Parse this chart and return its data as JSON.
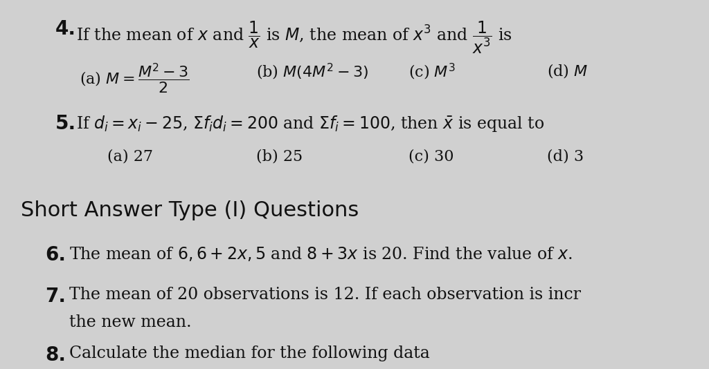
{
  "bg_color": "#d0d0d0",
  "text_color": "#111111",
  "q4_text": "If the mean of $x$ and $\\dfrac{1}{x}$ is $M$, the mean of $x^3$ and $\\dfrac{1}{x^3}$ is",
  "q4_num": "4.",
  "q4_a": "(a) $M = \\dfrac{M^2-3}{2}$",
  "q4_b": "(b) $M(4M^2-3)$",
  "q4_c": "(c) $M^3$",
  "q4_d": "(d) $M$",
  "q5_num": "5.",
  "q5_text": "If $d_i = x_i - 25$, $\\Sigma f_i d_i = 200$ and $\\Sigma f_i = 100$, then $\\bar{x}$ is equal to",
  "q5_a": "(a) 27",
  "q5_b": "(b) 25",
  "q5_c": "(c) 30",
  "q5_d": "(d) 3",
  "section_header": "Short Answer Type (I) Questions",
  "q6_num": "6.",
  "q6_text": "The mean of $6, 6+2x, 5$ and $8+3x$ is 20. Find the value of $x$.",
  "q7_num": "7.",
  "q7_text": "The mean of 20 observations is 12. If each observation is incr",
  "q7_line2": "the new mean.",
  "q8_num": "8.",
  "q8_text": "Calculate the median for the following data"
}
